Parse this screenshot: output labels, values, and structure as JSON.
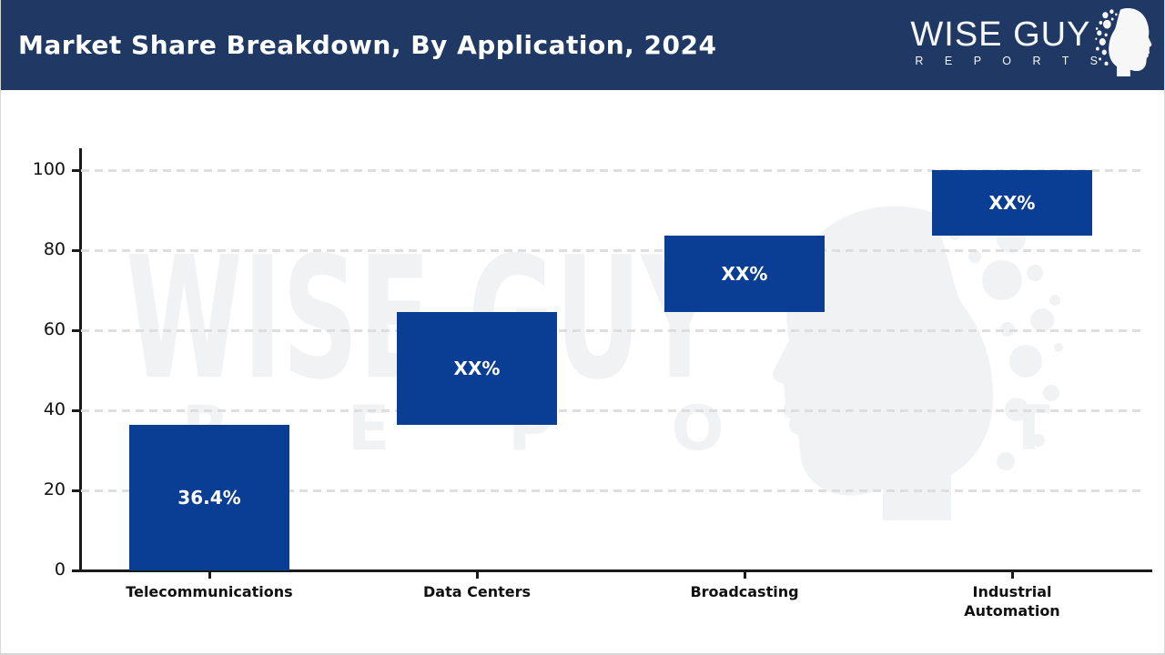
{
  "header": {
    "title": "Market Share Breakdown, By Application, 2024",
    "logo": {
      "brand_top": "WISE GUY",
      "brand_bottom": "R E P O R T S",
      "head_icon": "dotted-head-profile"
    }
  },
  "watermark": {
    "text_top": "WISE GUY",
    "text_bottom": "R E P O R T S",
    "head_icon": "dotted-head-profile"
  },
  "colors": {
    "header_bg": "#1f3864",
    "header_text": "#ffffff",
    "logo_text": "#f7f7f7",
    "bar": "#0a3d94",
    "bar_label": "#ffffff",
    "axis": "#1a1a1a",
    "grid": "#dedede",
    "tick_text": "#111111",
    "watermark": "#f1f2f4"
  },
  "chart_data": {
    "type": "bar",
    "subtype": "waterfall-floating-segments",
    "title": "Market Share Breakdown, By Application, 2024",
    "xlabel": "",
    "ylabel": "",
    "ylim": [
      0,
      100
    ],
    "yticks": [
      0,
      20,
      40,
      60,
      80,
      100
    ],
    "grid": "dashed-horizontal",
    "legend": "none",
    "categories": [
      "Telecommunications",
      "Data Centers",
      "Broadcasting",
      "Industrial Automation"
    ],
    "segments": [
      {
        "category": "Telecommunications",
        "tick_label_lines": [
          "Telecommunications"
        ],
        "start": 0,
        "end": 36.4,
        "value": 36.4,
        "display_label": "36.4%"
      },
      {
        "category": "Data Centers",
        "tick_label_lines": [
          "Data Centers"
        ],
        "start": 36.4,
        "end": 64.5,
        "value": 28.1,
        "display_label": "XX%"
      },
      {
        "category": "Broadcasting",
        "tick_label_lines": [
          "Broadcasting"
        ],
        "start": 64.5,
        "end": 83.6,
        "value": 19.1,
        "display_label": "XX%"
      },
      {
        "category": "Industrial Automation",
        "tick_label_lines": [
          "Industrial",
          "Automation"
        ],
        "start": 83.6,
        "end": 100,
        "value": 16.4,
        "display_label": "XX%"
      }
    ]
  }
}
